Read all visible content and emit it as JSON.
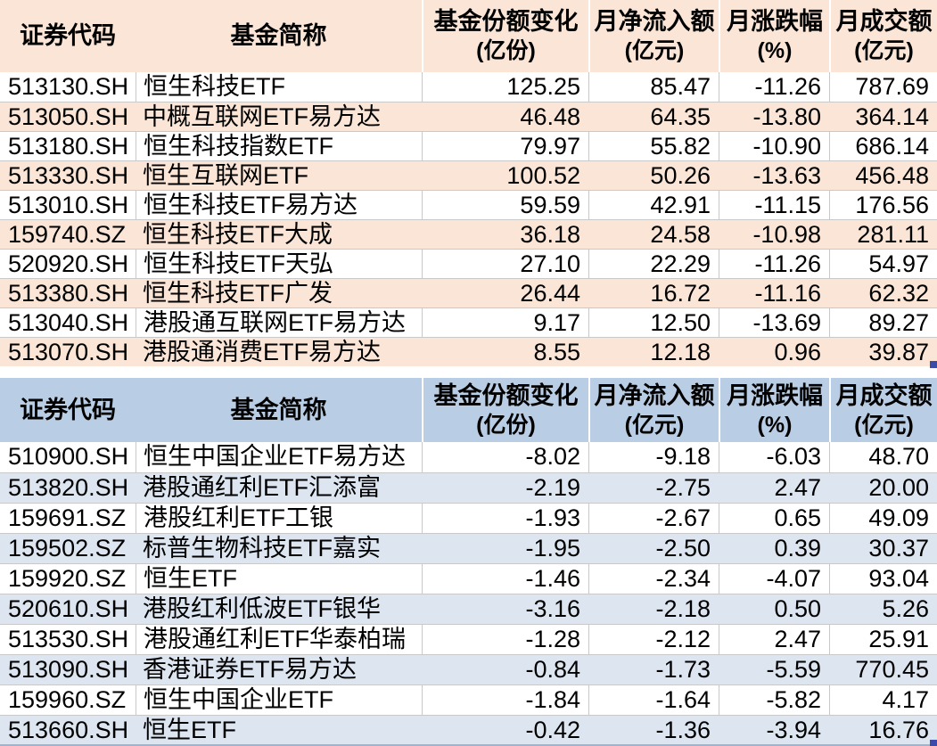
{
  "chart_data": [
    {
      "type": "table",
      "table_role": "net-inflow-funds",
      "columns": [
        "证券代码",
        "基金简称",
        "基金份额变化",
        "月净流入额",
        "月涨跌幅",
        "月成交额"
      ],
      "column_units": [
        "",
        "",
        "(亿份)",
        "(亿元)",
        "(%)",
        "(亿元)"
      ],
      "rows": [
        [
          "513130.SH",
          "恒生科技ETF",
          "125.25",
          "85.47",
          "-11.26",
          "787.69"
        ],
        [
          "513050.SH",
          "中概互联网ETF易方达",
          "46.48",
          "64.35",
          "-13.80",
          "364.14"
        ],
        [
          "513180.SH",
          "恒生科技指数ETF",
          "79.97",
          "55.82",
          "-10.90",
          "686.14"
        ],
        [
          "513330.SH",
          "恒生互联网ETF",
          "100.52",
          "50.26",
          "-13.63",
          "456.48"
        ],
        [
          "513010.SH",
          "恒生科技ETF易方达",
          "59.59",
          "42.91",
          "-11.15",
          "176.56"
        ],
        [
          "159740.SZ",
          "恒生科技ETF大成",
          "36.18",
          "24.58",
          "-10.98",
          "281.11"
        ],
        [
          "520920.SH",
          "恒生科技ETF天弘",
          "27.10",
          "22.29",
          "-11.26",
          "54.97"
        ],
        [
          "513380.SH",
          "恒生科技ETF广发",
          "26.44",
          "16.72",
          "-11.16",
          "62.32"
        ],
        [
          "513040.SH",
          "港股通互联网ETF易方达",
          "9.17",
          "12.50",
          "-13.69",
          "89.27"
        ],
        [
          "513070.SH",
          "港股通消费ETF易方达",
          "8.55",
          "12.18",
          "0.96",
          "39.87"
        ]
      ]
    },
    {
      "type": "table",
      "table_role": "net-outflow-funds",
      "columns": [
        "证券代码",
        "基金简称",
        "基金份额变化",
        "月净流入额",
        "月涨跌幅",
        "月成交额"
      ],
      "column_units": [
        "",
        "",
        "(亿份)",
        "(亿元)",
        "(%)",
        "(亿元)"
      ],
      "rows": [
        [
          "510900.SH",
          "恒生中国企业ETF易方达",
          "-8.02",
          "-9.18",
          "-6.03",
          "48.70"
        ],
        [
          "513820.SH",
          "港股通红利ETF汇添富",
          "-2.19",
          "-2.75",
          "2.47",
          "20.00"
        ],
        [
          "159691.SZ",
          "港股红利ETF工银",
          "-1.93",
          "-2.67",
          "0.65",
          "49.09"
        ],
        [
          "159502.SZ",
          "标普生物科技ETF嘉实",
          "-1.95",
          "-2.50",
          "0.39",
          "30.37"
        ],
        [
          "159920.SZ",
          "恒生ETF",
          "-1.46",
          "-2.34",
          "-4.07",
          "93.04"
        ],
        [
          "520610.SH",
          "港股红利低波ETF银华",
          "-3.16",
          "-2.18",
          "0.50",
          "5.26"
        ],
        [
          "513530.SH",
          "港股通红利ETF华泰柏瑞",
          "-1.28",
          "-2.12",
          "2.47",
          "25.91"
        ],
        [
          "513090.SH",
          "香港证券ETF易方达",
          "-0.84",
          "-1.73",
          "-5.59",
          "770.45"
        ],
        [
          "159960.SZ",
          "恒生中国企业ETF",
          "-1.84",
          "-1.64",
          "-5.82",
          "4.17"
        ],
        [
          "513660.SH",
          "恒生ETF",
          "-0.42",
          "-1.36",
          "-3.94",
          "16.76"
        ]
      ]
    }
  ],
  "styles": {
    "table1_header_bg": "#FBE5D6",
    "table1_stripe_bg": "#FBE5D6",
    "table2_header_bg": "#B9CDE5",
    "table2_stripe_bg": "#DCE5F0",
    "gridline_color": "#C9C9C9",
    "corner_marker_color": "#3A4CA8",
    "bottom_edge_color": "#9FB3D1",
    "text_color": "#000000"
  }
}
